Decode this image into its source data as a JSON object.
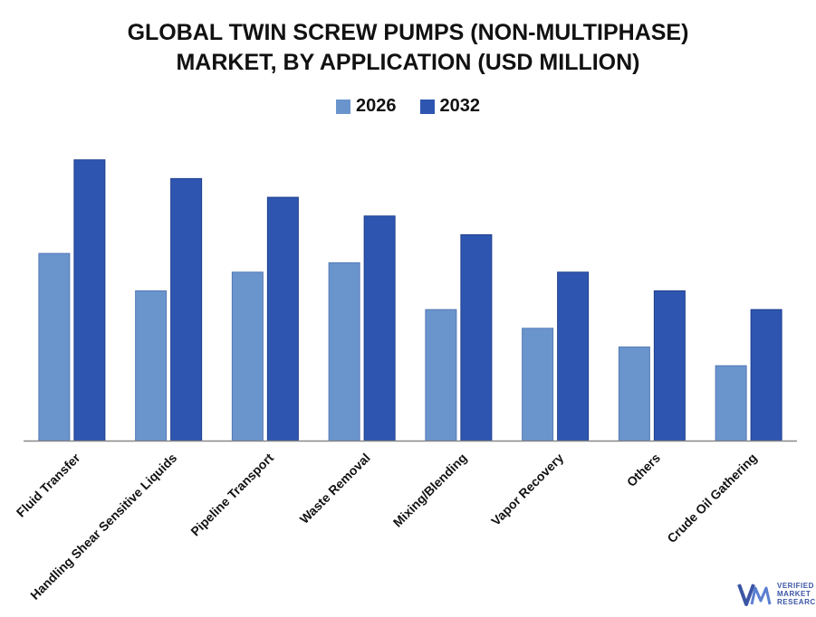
{
  "chart_data": {
    "type": "bar",
    "title_line1": "GLOBAL TWIN SCREW PUMPS (NON-MULTIPHASE)",
    "title_line2": "MARKET, BY APPLICATION (USD MILLION)",
    "categories": [
      "Fluid Transfer",
      "Handling Shear Sensitive Liquids",
      "Pipeline Transport",
      "Waste Removal",
      "Mixing/Blending",
      "Vapor Recovery",
      "Others",
      "Crude Oil Gathering"
    ],
    "series": [
      {
        "name": "2026",
        "color": "#6a95cc",
        "values": [
          200,
          160,
          180,
          190,
          140,
          120,
          100,
          80
        ]
      },
      {
        "name": "2032",
        "color": "#2e56b0",
        "values": [
          300,
          280,
          260,
          240,
          220,
          180,
          160,
          140
        ]
      }
    ],
    "xlabel": "",
    "ylabel": "",
    "ylim": [
      0,
      320
    ],
    "grid": false,
    "legend_position": "top-center"
  },
  "logo": {
    "mark": "VMR",
    "line1": "VERIFIED",
    "line2": "MARKET",
    "line3": "RESEARCH",
    "color": "#3b55a5"
  }
}
